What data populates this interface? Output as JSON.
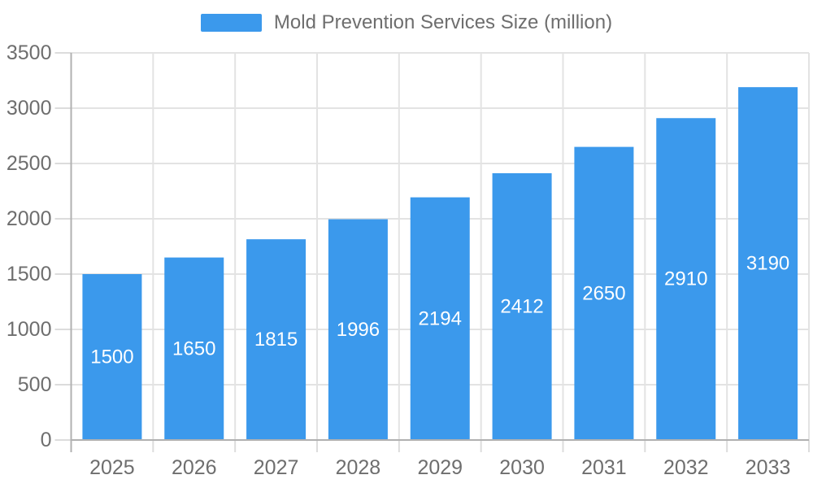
{
  "legend": {
    "label": "Mold Prevention Services Size (million)"
  },
  "colors": {
    "bar": "#3b99ec",
    "axis_line": "#b1b1b1",
    "grid_line": "#e3e3e3",
    "tick_line": "#dcdcdc",
    "axis_text": "#6e6e6e",
    "value_text": "#ffffff",
    "background": "#ffffff"
  },
  "chart_data": {
    "type": "bar",
    "title": "Mold Prevention Services Size (million)",
    "categories": [
      "2025",
      "2026",
      "2027",
      "2028",
      "2029",
      "2030",
      "2031",
      "2032",
      "2033"
    ],
    "values": [
      1500,
      1650,
      1815,
      1996,
      2194,
      2412,
      2650,
      2910,
      3190
    ],
    "xlabel": "",
    "ylabel": "",
    "ylim": [
      0,
      3500
    ],
    "yticks": [
      0,
      500,
      1000,
      1500,
      2000,
      2500,
      3000,
      3500
    ],
    "grid": true,
    "legend_position": "top-center",
    "value_labels": "inside-center"
  }
}
